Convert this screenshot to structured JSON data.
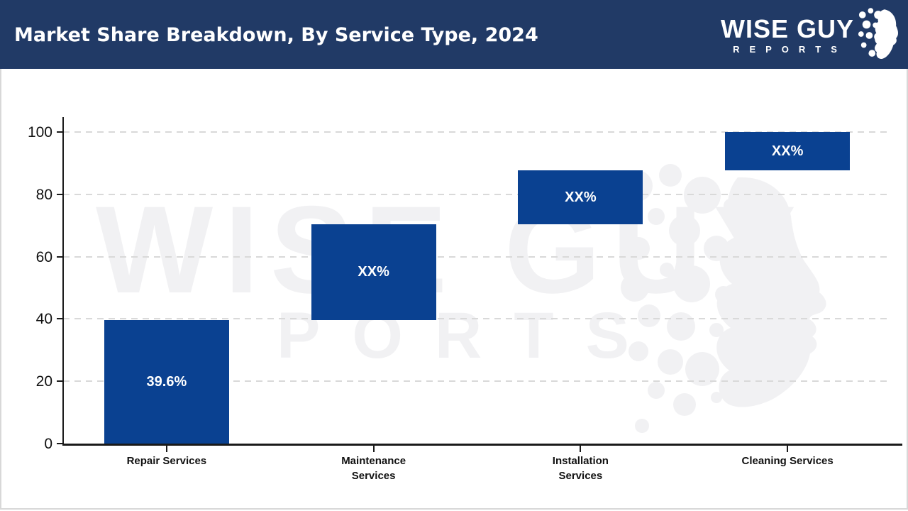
{
  "header": {
    "title": "Market Share Breakdown, By Service Type, 2024",
    "logo": {
      "line1": "WISE GUY",
      "line2": "REPORTS"
    }
  },
  "watermark": {
    "line1": "WISE GUY",
    "line2": "PORTS"
  },
  "colors": {
    "header_bg": "#213a66",
    "bar": "#0a4191",
    "bar_label": "#ffffff",
    "grid": "#d9d9d9",
    "axis": "#1a1a1a",
    "watermark": "#f1f1f3",
    "frame_border": "#d8d8d8"
  },
  "chart_data": {
    "type": "bar",
    "subtype": "waterfall",
    "title": "Market Share Breakdown, By Service Type, 2024",
    "categories": [
      "Repair Services",
      "Maintenance Services",
      "Installation Services",
      "Cleaning Services"
    ],
    "category_lines": [
      [
        "Repair Services"
      ],
      [
        "Maintenance",
        "Services"
      ],
      [
        "Installation",
        "Services"
      ],
      [
        "Cleaning Services"
      ]
    ],
    "segments": [
      {
        "category": "Repair Services",
        "start": 0,
        "end": 39.6,
        "value_label": "39.6%"
      },
      {
        "category": "Maintenance Services",
        "start": 39.6,
        "end": 70.4,
        "value_label": "XX%"
      },
      {
        "category": "Installation Services",
        "start": 70.4,
        "end": 87.6,
        "value_label": "XX%"
      },
      {
        "category": "Cleaning Services",
        "start": 87.6,
        "end": 100,
        "value_label": "XX%"
      }
    ],
    "yticks": [
      0,
      20,
      40,
      60,
      80,
      100
    ],
    "ylim": [
      0,
      100
    ],
    "xlabel": "",
    "ylabel": "",
    "grid": "dashed-horizontal",
    "legend": "none",
    "bar_color": "#0a4191"
  }
}
